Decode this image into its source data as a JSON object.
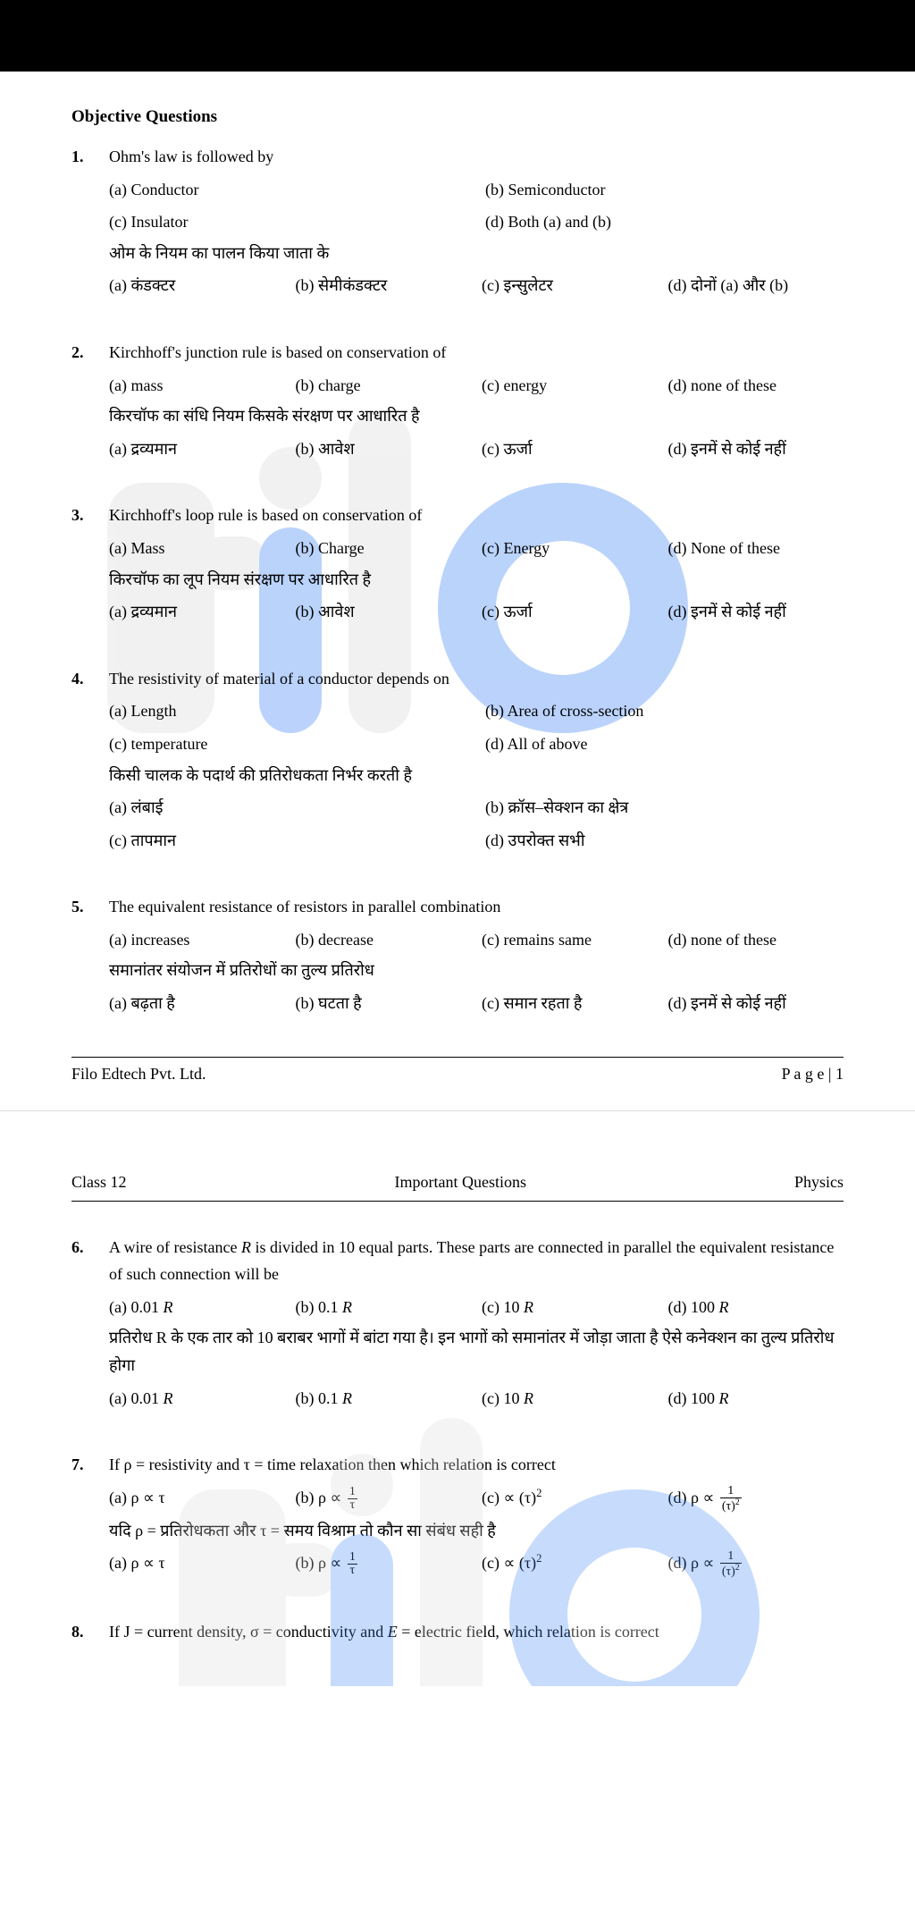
{
  "section_title": "Objective Questions",
  "questions": [
    {
      "num": "1.",
      "text_en": "Ohm's law is followed by",
      "opts_en_layout": "2col",
      "opts_en": [
        "(a) Conductor",
        "(b) Semiconductor",
        "(c) Insulator",
        "(d) Both (a) and (b)"
      ],
      "text_hi": "ओम के नियम का पालन किया जाता के",
      "opts_hi_layout": "4col",
      "opts_hi": [
        "(a) कंडक्टर",
        "(b) सेमीकंडक्टर",
        "(c) इन्सुलेटर",
        "(d) दोनों (a) और (b)"
      ]
    },
    {
      "num": "2.",
      "text_en": "Kirchhoff's junction rule is based on conservation of",
      "opts_en_layout": "4col",
      "opts_en": [
        "(a) mass",
        "(b) charge",
        "(c) energy",
        "(d) none of these"
      ],
      "text_hi": "किरचॉफ का संधि नियम किसके संरक्षण पर आधारित है",
      "opts_hi_layout": "4col",
      "opts_hi": [
        "(a) द्रव्यमान",
        "(b) आवेश",
        "(c) ऊर्जा",
        "(d) इनमें से कोई नहीं"
      ]
    },
    {
      "num": "3.",
      "text_en": "Kirchhoff's loop rule is based on conservation of",
      "opts_en_layout": "4col",
      "opts_en": [
        "(a) Mass",
        "(b) Charge",
        "(c) Energy",
        "(d) None of these"
      ],
      "text_hi": "किरचॉफ का लूप नियम संरक्षण पर आधारित है",
      "opts_hi_layout": "4col",
      "opts_hi": [
        "(a) द्रव्यमान",
        "(b) आवेश",
        "(c) ऊर्जा",
        "(d) इनमें से कोई नहीं"
      ]
    },
    {
      "num": "4.",
      "text_en": "The resistivity of material of a conductor depends on",
      "opts_en_layout": "2col",
      "opts_en": [
        "(a) Length",
        "(b) Area of cross-section",
        "(c) temperature",
        "(d) All of above"
      ],
      "text_hi": "किसी चालक के पदार्थ की प्रतिरोधकता निर्भर करती है",
      "opts_hi_layout": "2col",
      "opts_hi": [
        "(a) लंबाई",
        "(b) क्रॉस–सेक्शन का क्षेत्र",
        "(c) तापमान",
        "(d) उपरोक्त सभी"
      ]
    },
    {
      "num": "5.",
      "text_en": "The equivalent resistance of resistors in parallel combination",
      "opts_en_layout": "4col",
      "opts_en": [
        "(a) increases",
        "(b) decrease",
        "(c) remains same",
        "(d) none of these"
      ],
      "text_hi": "समानांतर संयोजन में प्रतिरोधों का तुल्य प्रतिरोध",
      "opts_hi_layout": "4col",
      "opts_hi": [
        "(a) बढ़ता है",
        "(b) घटता है",
        "(c) समान रहता है",
        "(d) इनमें से कोई नहीं"
      ]
    }
  ],
  "footer": {
    "left": "Filo Edtech Pvt. Ltd.",
    "right": "P a g e | 1"
  },
  "page2_header": {
    "left": "Class 12",
    "center": "Important Questions",
    "right": "Physics"
  },
  "questions2": [
    {
      "num": "6.",
      "text_en_html": "A wire of resistance <span class='italic'>R</span> is divided in 10 equal parts. These parts are connected in parallel the equivalent resistance of such connection will be",
      "opts_en_layout": "4col",
      "opts_en_html": [
        "(a) 0.01 <span class='italic'>R</span>",
        "(b) 0.1 <span class='italic'>R</span>",
        "(c) 10 <span class='italic'>R</span>",
        "(d) 100 <span class='italic'>R</span>"
      ],
      "text_hi": "प्रतिरोध R के एक तार को 10 बराबर भागों में बांटा गया है। इन भागों को समानांतर में जोड़ा जाता है ऐसे कनेक्शन का तुल्य प्रतिरोध होगा",
      "opts_hi_layout": "4col",
      "opts_hi_html": [
        "(a) 0.01 <span class='italic'>R</span>",
        "(b) 0.1 <span class='italic'>R</span>",
        "(c) 10 <span class='italic'>R</span>",
        "(d) 100 <span class='italic'>R</span>"
      ]
    },
    {
      "num": "7.",
      "text_en_html": "If ρ = resistivity and τ = time relaxation then which relation is correct",
      "opts_en_layout": "4col",
      "opts_en_html": [
        "(a) ρ ∝ τ",
        "(b) ρ ∝ <span class='frac'><span class='num'>1</span><span class='den'>τ</span></span>",
        "(c) ∝ (τ)<sup>2</sup>",
        "(d) ρ ∝ <span class='frac'><span class='num'>1</span><span class='den'>(τ)<sup>2</sup></span></span>"
      ],
      "text_hi": "यदि ρ = प्रतिरोधकता और τ = समय विश्राम तो कौन सा संबंध सही है",
      "opts_hi_layout": "4col",
      "opts_hi_html": [
        "(a) ρ ∝ τ",
        "(b) ρ ∝ <span class='frac'><span class='num'>1</span><span class='den'>τ</span></span>",
        "(c) ∝ (τ)<sup>2</sup>",
        "(d) ρ ∝ <span class='frac'><span class='num'>1</span><span class='den'>(τ)<sup>2</sup></span></span>"
      ]
    },
    {
      "num": "8.",
      "text_en_html": "If J = current density, σ = conductivity and <span class='italic'>E</span> = electric field, which relation is correct",
      "opts_en_layout": null,
      "opts_en_html": null,
      "text_hi": null,
      "opts_hi_layout": null,
      "opts_hi_html": null
    }
  ]
}
